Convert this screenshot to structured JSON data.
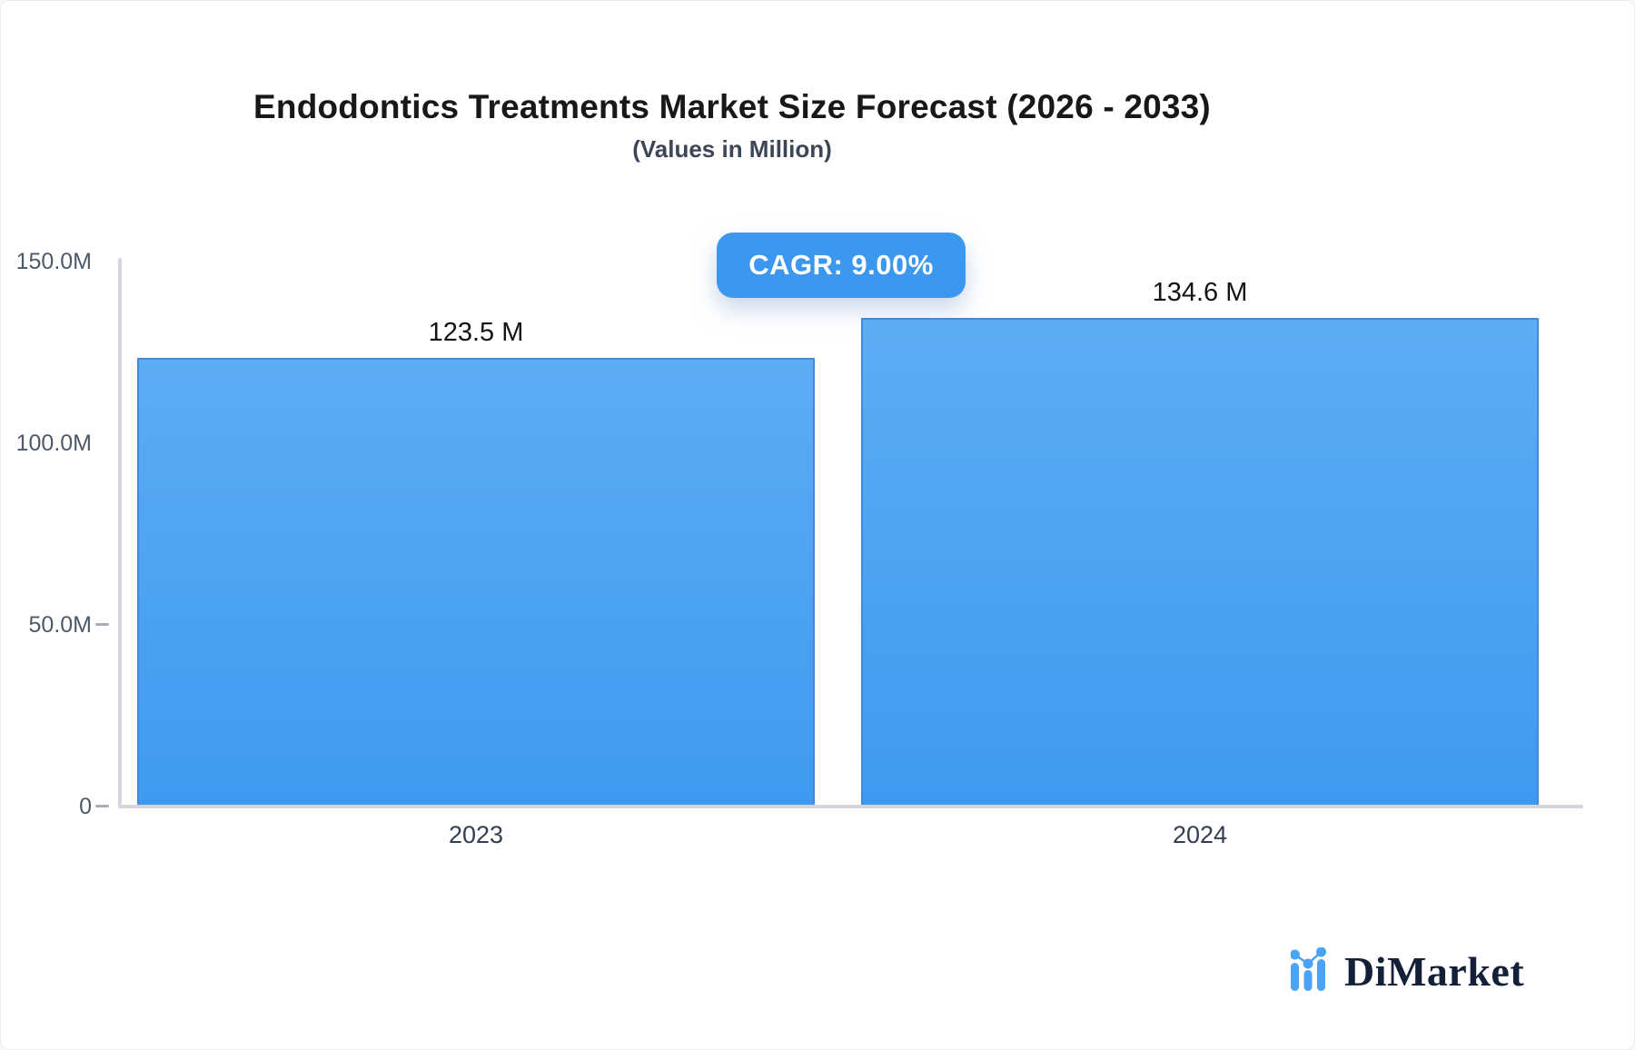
{
  "chart_data": {
    "type": "bar",
    "title": "Endodontics Treatments Market Size Forecast (2026 - 2033)",
    "subtitle": "(Values in Million)",
    "annotation": "CAGR: 9.00%",
    "categories": [
      "2023",
      "2024"
    ],
    "values": [
      123.5,
      134.6
    ],
    "value_labels": [
      "123.5 M",
      "134.6 M"
    ],
    "unit": "M",
    "ylim": [
      0,
      150
    ],
    "yticks": [
      {
        "value": 150,
        "label": "150.0M",
        "dash": false
      },
      {
        "value": 100,
        "label": "100.0M",
        "dash": false
      },
      {
        "value": 50,
        "label": "50.0M",
        "dash": true
      },
      {
        "value": 0,
        "label": "0",
        "dash": true
      }
    ],
    "grid": false,
    "legend": false
  },
  "colors": {
    "accent": "#3c97ef",
    "bar_top": "#5dacf4",
    "bar_bottom": "#3e9af1",
    "bar_border": "#4289dd",
    "axis": "#d3d6dc"
  },
  "logo": {
    "name": "DiMarket",
    "icon": "bar-chart-logo-icon",
    "icon_color": "#4aa3f5",
    "text_color": "#141f38"
  }
}
